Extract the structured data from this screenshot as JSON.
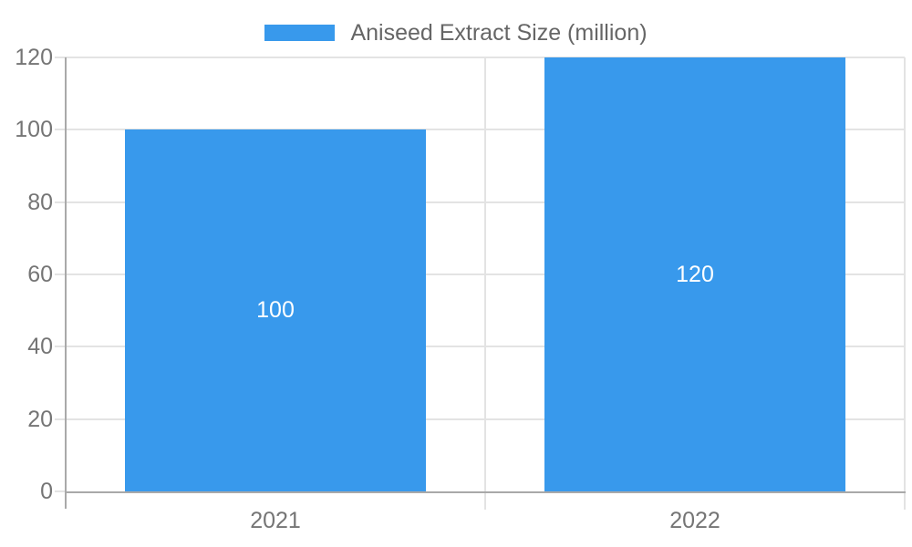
{
  "chart_data": {
    "type": "bar",
    "title": "",
    "series_name": "Aniseed Extract Size (million)",
    "categories": [
      "2021",
      "2022"
    ],
    "values": [
      100,
      120
    ],
    "value_labels": [
      "100",
      "120"
    ],
    "xlabel": "",
    "ylabel": "",
    "ylim": [
      0,
      120
    ],
    "yticks": [
      0,
      20,
      40,
      60,
      80,
      100,
      120
    ],
    "grid": true,
    "legend_position": "top-center",
    "colors": {
      "bar": "#3899ec",
      "value_label": "#ffffff",
      "grid": "#e3e3e3",
      "axis_line": "#a9a9a9",
      "tick_label": "#757575",
      "legend_text": "#666666",
      "background": "#ffffff"
    }
  }
}
